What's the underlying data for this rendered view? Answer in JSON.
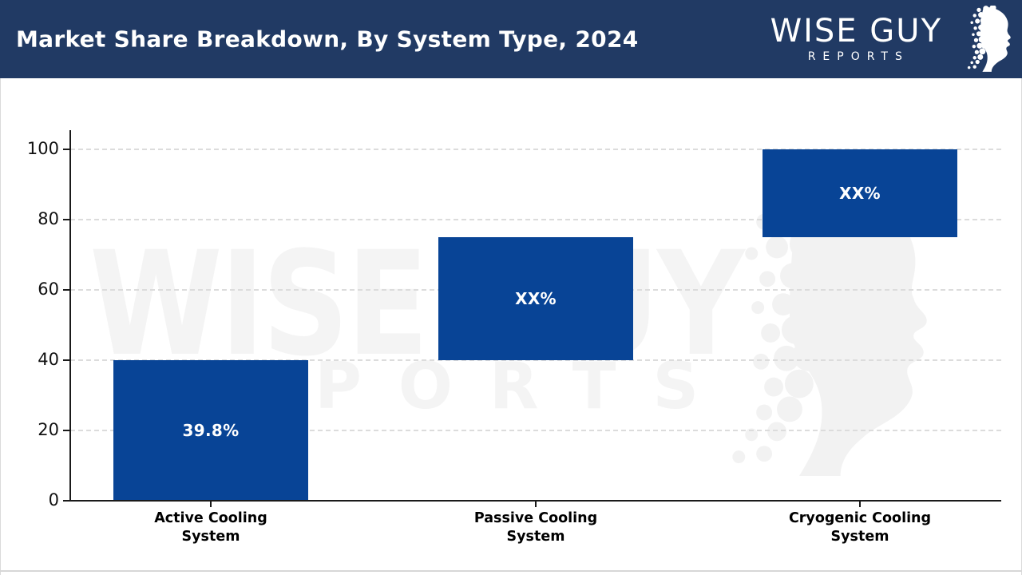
{
  "header": {
    "title": "Market Share Breakdown, By System Type, 2024",
    "bg_color": "#213a64",
    "logo": {
      "line1": "WISE GUY",
      "line2": "REPORTS"
    }
  },
  "watermark": {
    "line1": "WISE GUY",
    "line2": "REPORTS"
  },
  "chart_data": {
    "type": "bar",
    "variant": "stacked-waterfall",
    "title": "Market Share Breakdown, By System Type, 2024",
    "categories": [
      {
        "line1": "Active Cooling",
        "line2": "System"
      },
      {
        "line1": "Passive Cooling",
        "line2": "System"
      },
      {
        "line1": "Cryogenic Cooling",
        "line2": "System"
      }
    ],
    "bars": [
      {
        "category": "Active Cooling System",
        "start": 0,
        "end": 40,
        "value_label": "39.8%"
      },
      {
        "category": "Passive Cooling System",
        "start": 40,
        "end": 75,
        "value_label": "XX%"
      },
      {
        "category": "Cryogenic Cooling System",
        "start": 75,
        "end": 100,
        "value_label": "XX%"
      }
    ],
    "yticks": [
      0,
      20,
      40,
      60,
      80,
      100
    ],
    "ylim": [
      0,
      105
    ],
    "xlabel": "",
    "ylabel": "",
    "grid": "horizontal-dashed",
    "legend": "none",
    "bar_color": "#084496",
    "axis_color": "#1a1a1a",
    "grid_color": "#dcdcdc"
  }
}
